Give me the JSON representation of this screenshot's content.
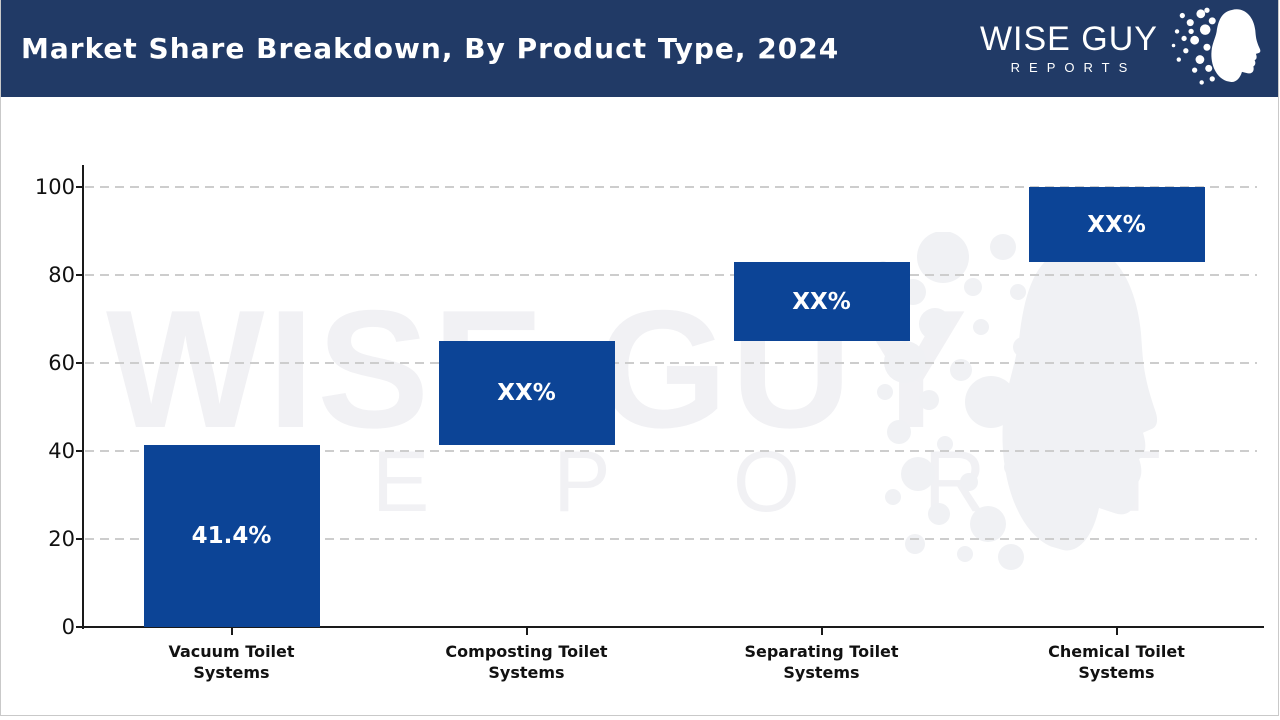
{
  "header": {
    "logo": {
      "line1": "WISE GUY",
      "line2": "REPORTS"
    }
  },
  "watermark": {
    "line1": "WISE GUY",
    "line2": "R E P O R T S"
  },
  "chart_data": {
    "type": "bar",
    "subtype": "waterfall",
    "title": "Market Share Breakdown, By Product Type, 2024",
    "categories": [
      "Vacuum Toilet Systems",
      "Composting Toilet Systems",
      "Separating Toilet Systems",
      "Chemical Toilet Systems"
    ],
    "category_label_lines": [
      [
        "Vacuum Toilet",
        "Systems"
      ],
      [
        "Composting Toilet",
        "Systems"
      ],
      [
        "Separating Toilet",
        "Systems"
      ],
      [
        "Chemical Toilet",
        "Systems"
      ]
    ],
    "segments": [
      {
        "category": "Vacuum Toilet Systems",
        "start": 0,
        "end": 41.4,
        "label": "41.4%"
      },
      {
        "category": "Composting Toilet Systems",
        "start": 41.4,
        "end": 65.0,
        "label": "XX%"
      },
      {
        "category": "Separating Toilet Systems",
        "start": 65.0,
        "end": 82.9,
        "label": "XX%"
      },
      {
        "category": "Chemical Toilet Systems",
        "start": 82.9,
        "end": 100.0,
        "label": "XX%"
      }
    ],
    "yticks": [
      0,
      20,
      40,
      60,
      80,
      100
    ],
    "ylim": [
      0,
      105
    ],
    "xlabel": "",
    "ylabel": "",
    "legend": "none",
    "grid": {
      "horizontal": true,
      "style": "dashed"
    },
    "colors": {
      "bar": "#0c4496",
      "bar_label": "#ffffff",
      "header_background": "#213a66",
      "gridline": "#cdcdcd",
      "axis": "#1a1a1a",
      "watermark": "#f0f1f4"
    }
  }
}
